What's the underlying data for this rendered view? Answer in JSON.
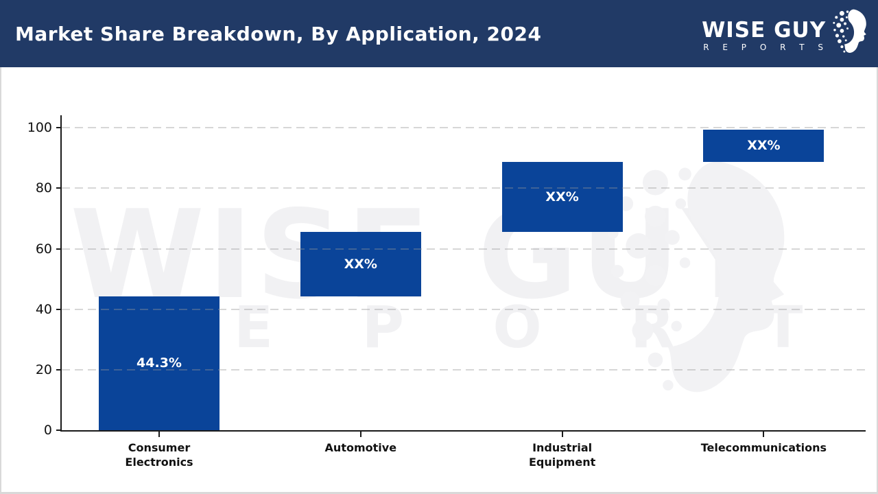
{
  "header": {
    "title": "Market Share Breakdown, By Application, 2024",
    "logo": {
      "line1": "WISE GUY",
      "line2": "R E P O R T S",
      "icon": "face-dots-icon"
    }
  },
  "watermark": {
    "line1": "WISE GUY",
    "line2": "R E P O R T S",
    "icon": "face-dots-icon"
  },
  "chart_data": {
    "type": "bar",
    "subtype": "waterfall-floating-bars",
    "title": "Market Share Breakdown, By Application, 2024",
    "categories": [
      "Consumer\nElectronics",
      "Automotive",
      "Industrial\nEquipment",
      "Telecommunications"
    ],
    "series": [
      {
        "name": "Market Share (%)",
        "segments": [
          {
            "category": "Consumer Electronics",
            "start": 0,
            "end": 44.3,
            "label": "44.3%"
          },
          {
            "category": "Automotive",
            "start": 44.3,
            "end": 65.5,
            "label": "XX%"
          },
          {
            "category": "Industrial Equipment",
            "start": 65.5,
            "end": 88.7,
            "label": "XX%"
          },
          {
            "category": "Telecommunications",
            "start": 88.7,
            "end": 99.5,
            "label": "XX%"
          }
        ]
      }
    ],
    "xlabel": "",
    "ylabel": "",
    "ylim": [
      0,
      105
    ],
    "yticks": [
      0,
      20,
      40,
      60,
      80,
      100
    ],
    "grid": "horizontal-dashed",
    "legend": "none",
    "bar_color": "#0a4499",
    "bar_label_color": "#ffffff"
  },
  "colors": {
    "header_bg": "#213a66",
    "header_text": "#ffffff",
    "bar": "#0a4499",
    "axis": "#1a1a1a",
    "gridline": "#d7d7d7",
    "watermark": "#f1f1f3",
    "frame_border": "#d9d9d9",
    "background": "#ffffff"
  }
}
